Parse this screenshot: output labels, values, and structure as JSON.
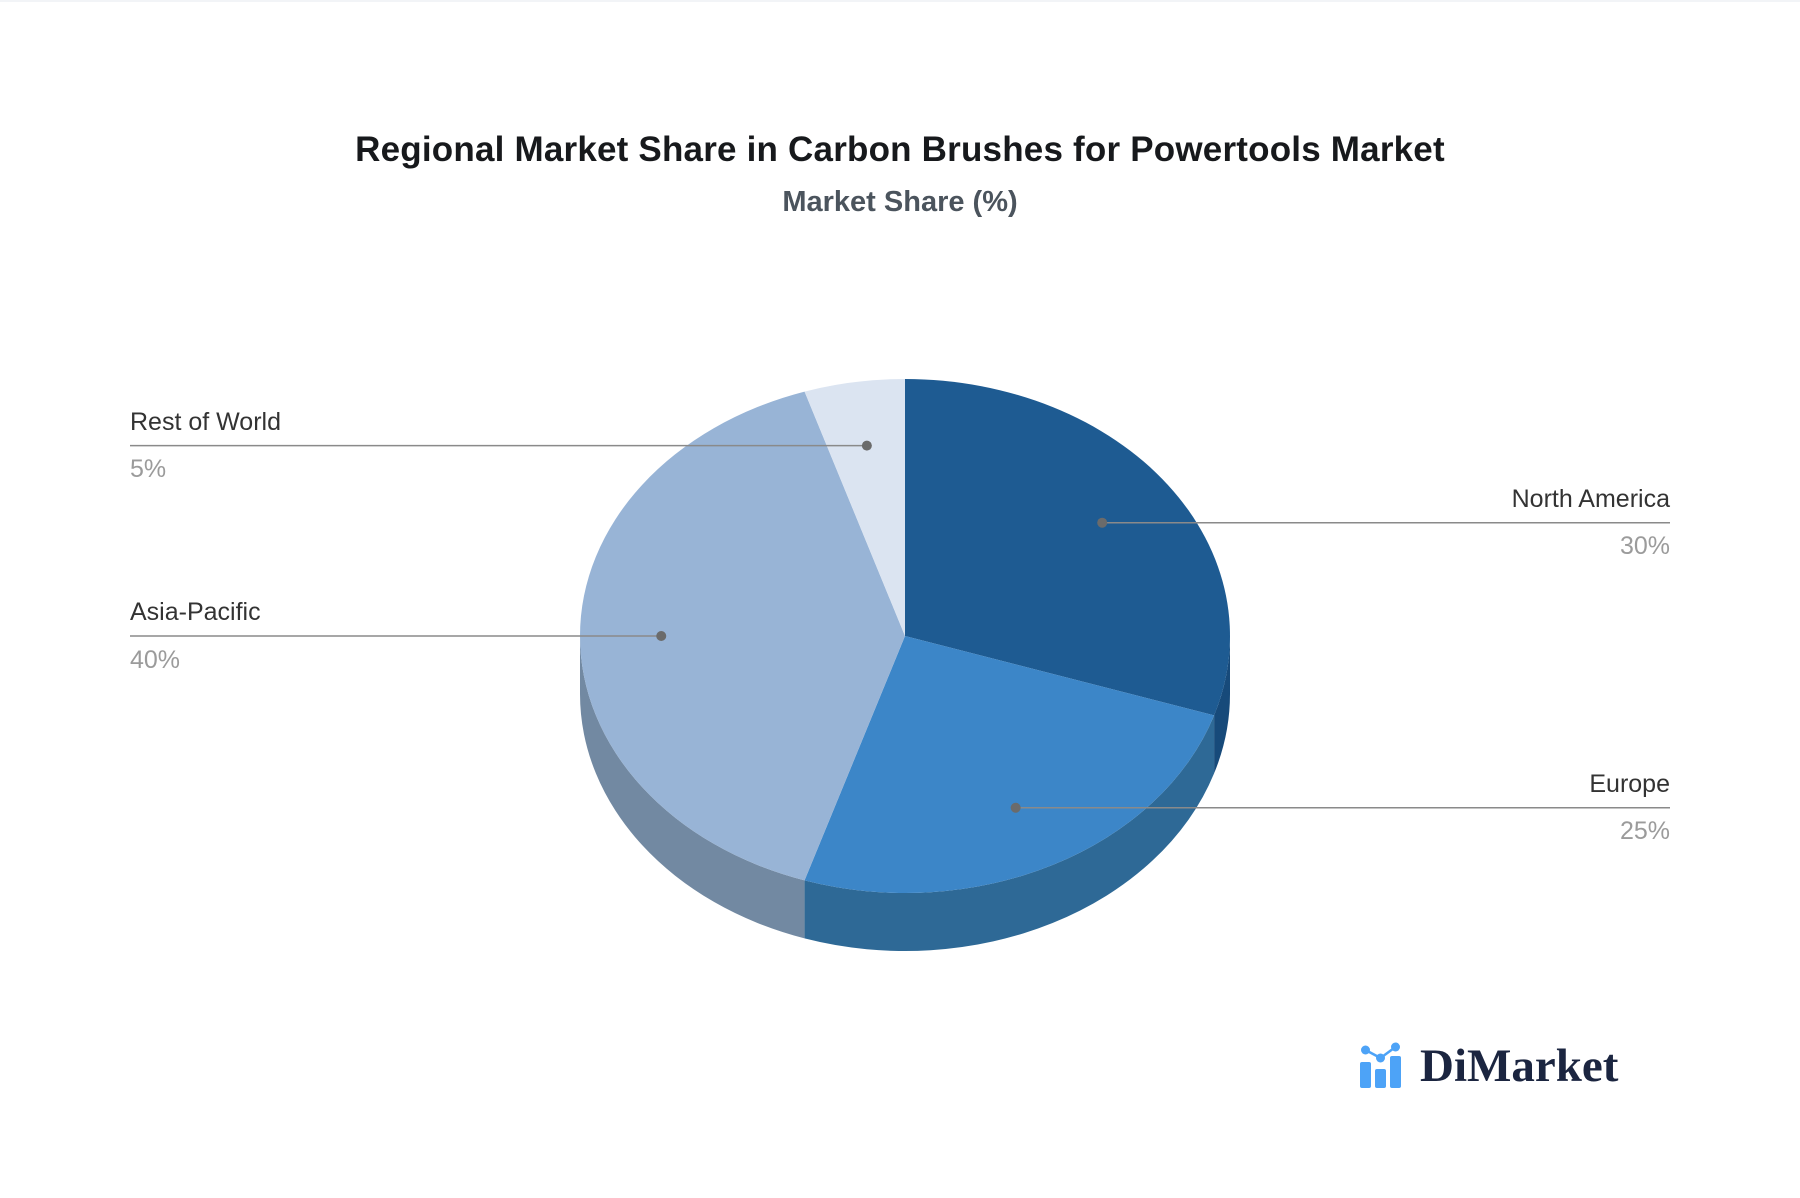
{
  "header": {
    "title": "Regional Market Share in Carbon Brushes for Powertools Market",
    "subtitle": "Market Share (%)"
  },
  "chart_data": {
    "type": "pie",
    "style": "3d",
    "title": "Regional Market Share in Carbon Brushes for Powertools Market",
    "subtitle": "Market Share (%)",
    "unit": "percent",
    "direction": "clockwise",
    "start_angle_deg": 0,
    "legend_position": "callout-labels",
    "grid": false,
    "labels": [
      "North America",
      "Europe",
      "Asia-Pacific",
      "Rest of World"
    ],
    "values": [
      30,
      25,
      40,
      5
    ],
    "slices": [
      {
        "label": "North America",
        "value": 30,
        "value_label": "30%",
        "color": "#1e5b92",
        "side_color": "#174a7a",
        "callout_side": "right"
      },
      {
        "label": "Europe",
        "value": 25,
        "value_label": "25%",
        "color": "#3c86c8",
        "side_color": "#2e6996",
        "callout_side": "right"
      },
      {
        "label": "Asia-Pacific",
        "value": 40,
        "value_label": "40%",
        "color": "#98b4d6",
        "side_color": "#7289a2",
        "callout_side": "left"
      },
      {
        "label": "Rest of World",
        "value": 5,
        "value_label": "5%",
        "color": "#dbe4f1",
        "side_color": "#b9c7d9",
        "callout_side": "left"
      }
    ]
  },
  "styles": {
    "label_color": "#333333",
    "value_color": "#9b9b9b",
    "leader_line_color": "#8a8a8a",
    "leader_dot_color": "#6b6b6b"
  },
  "branding": {
    "logo_text": "DiMarket",
    "logo_icon": "bar-chart-trend-icon",
    "icon_color": "#4da3f7",
    "text_color": "#1b2540"
  }
}
